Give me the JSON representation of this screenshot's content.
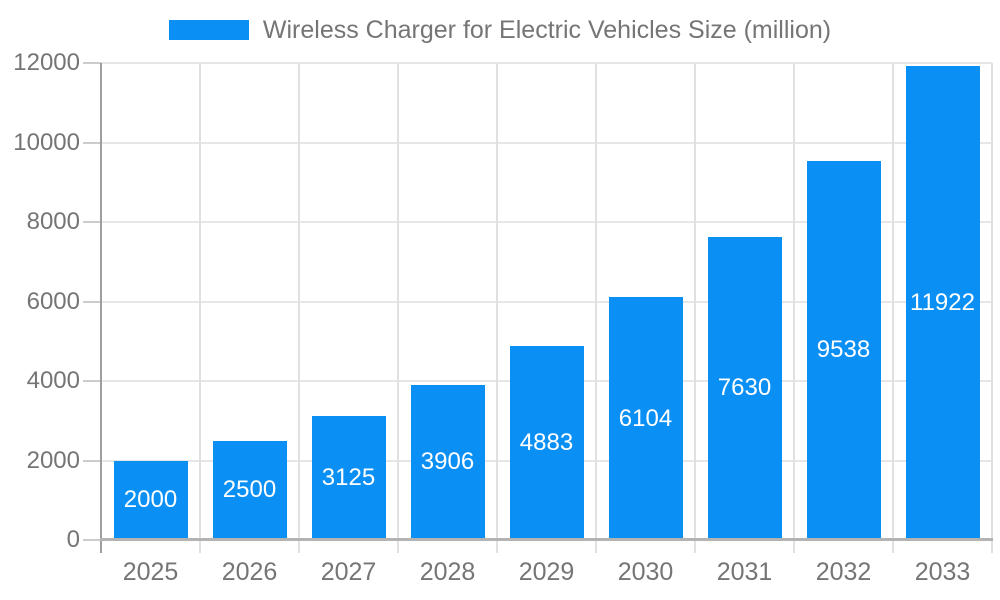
{
  "chart_data": {
    "type": "bar",
    "legend": "Wireless Charger for Electric Vehicles Size (million)",
    "legend_position": "top-center",
    "categories": [
      "2025",
      "2026",
      "2027",
      "2028",
      "2029",
      "2030",
      "2031",
      "2032",
      "2033"
    ],
    "values": [
      2000,
      2500,
      3125,
      3906,
      4883,
      6104,
      7630,
      9538,
      11922
    ],
    "y_ticks": [
      0,
      2000,
      4000,
      6000,
      8000,
      10000,
      12000
    ],
    "ylim": [
      0,
      12000
    ],
    "xlabel": "",
    "ylabel": "",
    "grid": "on",
    "bar_color": "#0a8ff5",
    "value_label_color": "#ffffff",
    "text_color": "#757575",
    "hgrid_color": "#e6e6e6",
    "vgrid_color": "#e0e0e0",
    "ytick_color": "#cccccc",
    "yaxis_color": "#9e9e9e",
    "baseline_color": "#b3b3b3",
    "background_color": "#ffffff"
  }
}
